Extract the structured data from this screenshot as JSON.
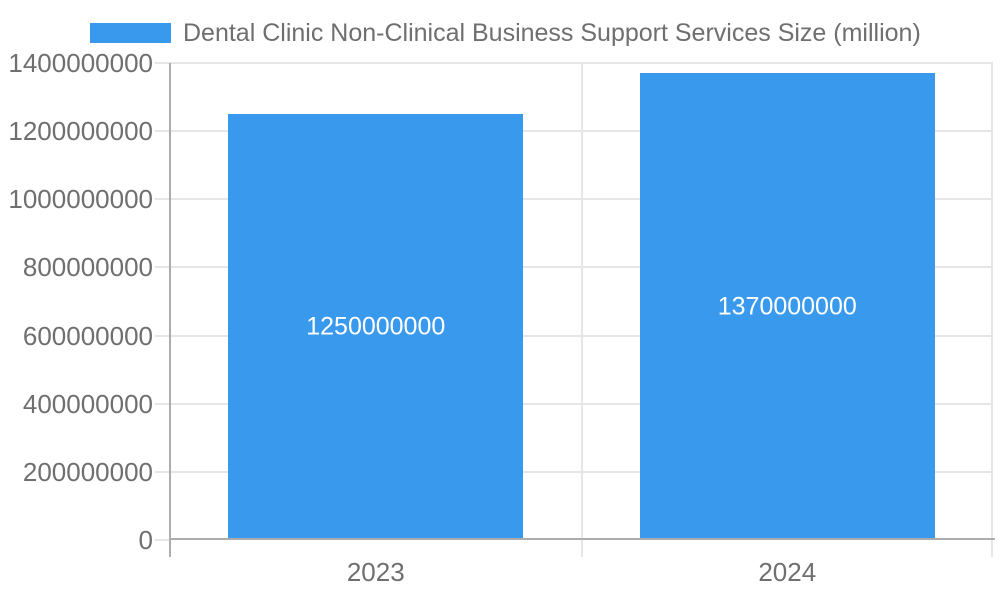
{
  "colors": {
    "bar": "#3999EC",
    "axis": "#ADADAD",
    "grid": "#E6E6E6",
    "text": "#6F6F6F",
    "bar_label": "#FFFFFF",
    "background": "#FFFFFF"
  },
  "chart_data": {
    "type": "bar",
    "title": "Dental Clinic Non-Clinical Business Support Services Size (million)",
    "legend_position": "top",
    "categories": [
      "2023",
      "2024"
    ],
    "values": [
      1250000000,
      1370000000
    ],
    "bar_labels": [
      "1250000000",
      "1370000000"
    ],
    "xlabel": "",
    "ylabel": "",
    "ylim": [
      0,
      1400000000
    ],
    "ytick_step": 200000000,
    "ytick_labels": [
      "0",
      "200000000",
      "400000000",
      "600000000",
      "800000000",
      "1000000000",
      "1200000000",
      "1400000000"
    ],
    "grid": true
  }
}
